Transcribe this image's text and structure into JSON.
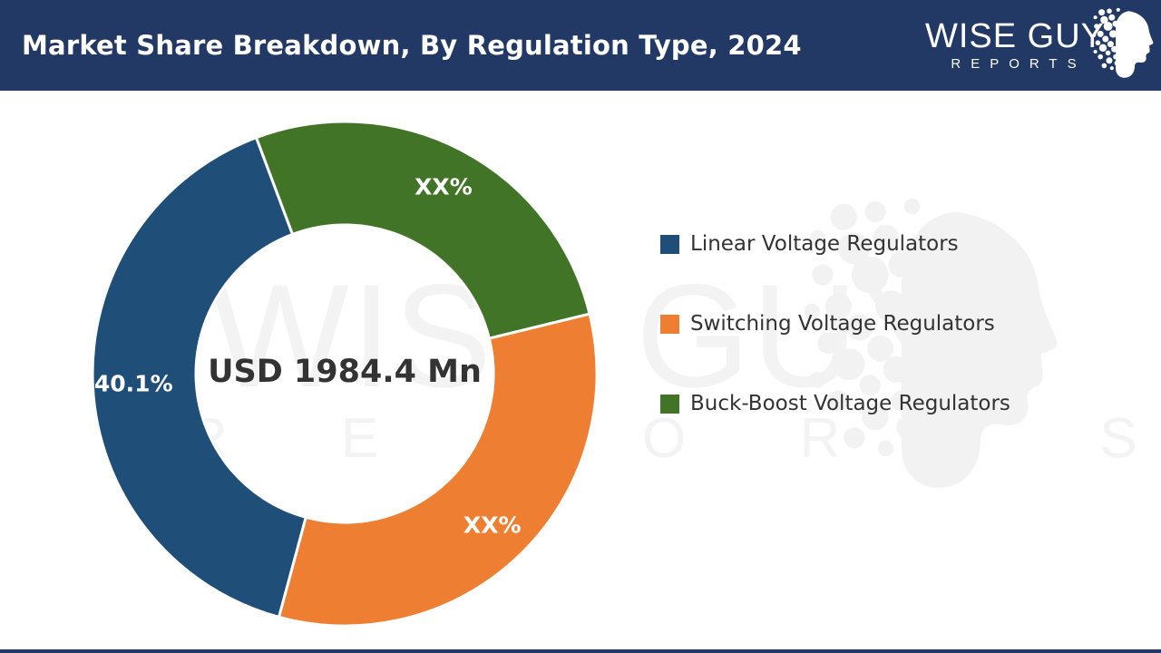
{
  "header": {
    "title": "Market Share Breakdown, By Regulation Type, 2024",
    "logo": {
      "name": "WISE GUY",
      "sub": "REPORTS"
    }
  },
  "watermark": {
    "name": "WISE GUY",
    "sub": "R E P O R T S"
  },
  "chart_data": {
    "type": "donut",
    "title": "Market Share Breakdown, By Regulation Type, 2024",
    "center_label": "USD 1984.4 Mn",
    "unit": "percent market share",
    "slices": [
      {
        "name": "Linear Voltage Regulators",
        "value_pct": 40.1,
        "label": "40.1%",
        "color": "#1f4e78"
      },
      {
        "name": "Switching Voltage Regulators",
        "value_pct": 33.0,
        "label": "XX%",
        "color": "#ee7e31"
      },
      {
        "name": "Buck-Boost Voltage Regulators",
        "value_pct": 26.9,
        "label": "XX%",
        "color": "#427427"
      }
    ],
    "layout": {
      "legend_position": "right",
      "start_angle_deg": 13.7,
      "direction": "ccw",
      "draw_order": [
        2,
        0,
        1
      ],
      "inner_radius_ratio": 0.59,
      "slice_gap_color": "#ffffff"
    }
  }
}
